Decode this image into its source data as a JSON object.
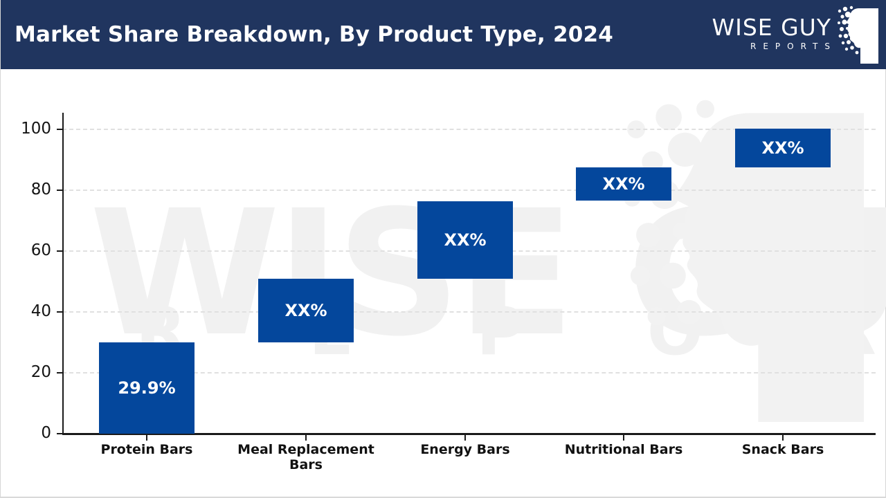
{
  "header": {
    "title": "Market Share Breakdown, By Product Type, 2024",
    "background_color": "#20355f",
    "logo": {
      "line1": "WISE GUY",
      "line2": "REPORTS",
      "icon": "dotted-face-profile"
    }
  },
  "watermark": {
    "line1": "WISE GUY",
    "line2": "REPORTS",
    "icon": "dotted-face-profile"
  },
  "chart_data": {
    "type": "bar",
    "subtype": "floating-waterfall",
    "title": "Market Share Breakdown, By Product Type, 2024",
    "categories": [
      "Protein Bars",
      "Meal Replacement Bars",
      "Energy Bars",
      "Nutritional Bars",
      "Snack Bars"
    ],
    "series": [
      {
        "name": "Market Share (%)",
        "segments": [
          {
            "category": "Protein Bars",
            "start": 0,
            "end": 29.9,
            "label": "29.9%"
          },
          {
            "category": "Meal Replacement Bars",
            "start": 29.9,
            "end": 50.8,
            "label": "XX%"
          },
          {
            "category": "Energy Bars",
            "start": 50.8,
            "end": 76.2,
            "label": "XX%"
          },
          {
            "category": "Nutritional Bars",
            "start": 76.4,
            "end": 87.5,
            "label": "XX%"
          },
          {
            "category": "Snack Bars",
            "start": 87.5,
            "end": 100.2,
            "label": "XX%"
          }
        ]
      }
    ],
    "xlabel": "",
    "ylabel": "",
    "ylim": [
      0,
      105
    ],
    "yticks": [
      0,
      20,
      40,
      60,
      80,
      100
    ],
    "grid": "horizontal-dashed",
    "legend": "none",
    "bar_color": "#04479c",
    "bar_label_color": "#ffffff",
    "axis_color": "#1a1a1a"
  }
}
